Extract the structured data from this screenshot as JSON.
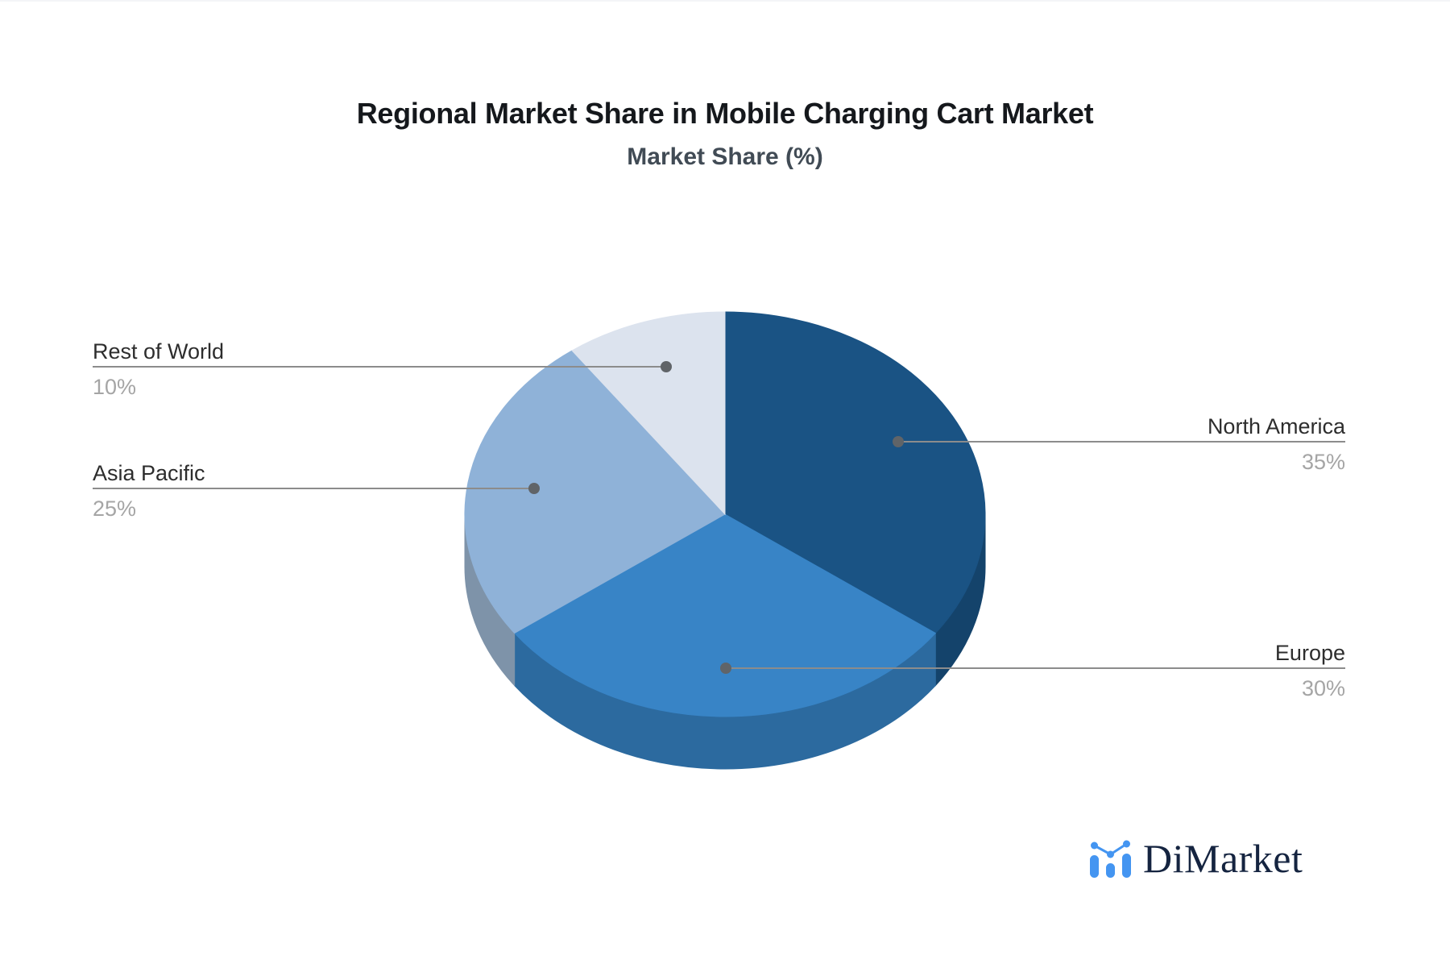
{
  "title": "Regional Market Share in Mobile Charging Cart Market",
  "subtitle": "Market Share (%)",
  "logo": {
    "text": "DiMarket",
    "icon": "bar-chart-logo-icon",
    "text_color": "#152440",
    "icon_color": "#4495f1"
  },
  "annotation_style": {
    "label_color": "#2d2d2d",
    "percent_color": "#a5a5a5",
    "line_color": "#8c8c8c",
    "dot_color": "#606468"
  },
  "chart_data": {
    "type": "pie",
    "style": "3d",
    "title": "Regional Market Share in Mobile Charging Cart Market",
    "subtitle": "Market Share (%)",
    "unit": "%",
    "legend_position": "none",
    "start_angle_deg": 0,
    "direction": "clockwise",
    "labels": [
      "North America",
      "Europe",
      "Asia Pacific",
      "Rest of World"
    ],
    "values": [
      35,
      30,
      25,
      10
    ],
    "display_values": [
      "35%",
      "30%",
      "25%",
      "10%"
    ],
    "colors": [
      "#1a5384",
      "#3884c6",
      "#8fb2d8",
      "#dce3ee"
    ],
    "side_colors": [
      "#14436b",
      "#2c6a9f",
      "#7e93a9",
      "#c9d2e0"
    ]
  }
}
